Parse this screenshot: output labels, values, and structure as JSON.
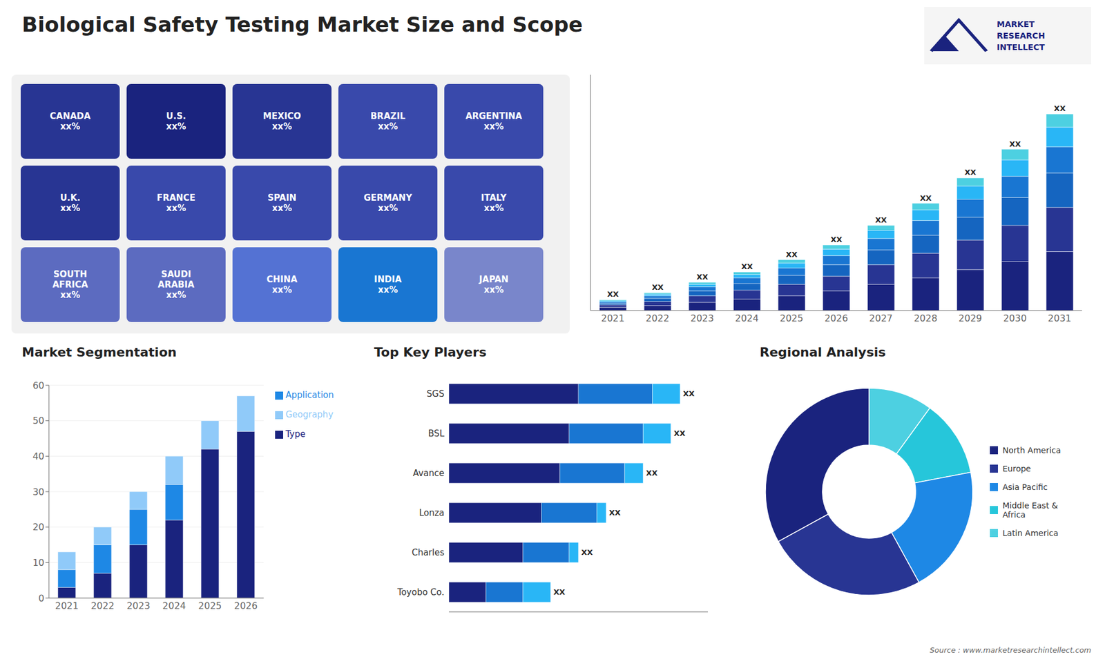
{
  "chart_data": [
    {
      "type": "header",
      "title": "Biological Safety Testing Market Size and Scope",
      "annotations": [
        "MARKET",
        "RESEARCH",
        "INTELLECT"
      ]
    },
    {
      "type": "map",
      "annotations": [
        "CANADA\nxx%",
        "U.S.\nxx%",
        "MEXICO\nxx%",
        "BRAZIL\nxx%",
        "ARGENTINA\nxx%",
        "U.K.\nxx%",
        "FRANCE\nxx%",
        "SPAIN\nxx%",
        "GERMANY\nxx%",
        "ITALY\nxx%",
        "SOUTH\nAFRICA\nxx%",
        "SAUDI\nARABIA\nxx%",
        "CHINA\nxx%",
        "INDIA\nxx%",
        "JAPAN\nxx%"
      ],
      "colors": [
        "#283593",
        "#1a237e",
        "#283593",
        "#3949ab",
        "#3949ab",
        "#283593",
        "#3949ab",
        "#3949ab",
        "#3949ab",
        "#3949ab",
        "#5c6bc0",
        "#5c6bc0",
        "#5472d3",
        "#1976d2",
        "#7986cb"
      ]
    },
    {
      "type": "bar",
      "stacked": true,
      "categories": [
        "2021",
        "2022",
        "2023",
        "2024",
        "2025",
        "2026",
        "2027",
        "2028",
        "2029",
        "2030",
        "2031"
      ],
      "series": [
        {
          "color": "#1a237e",
          "values": [
            2,
            3,
            5,
            7,
            9,
            12,
            16,
            20,
            25,
            30,
            36
          ]
        },
        {
          "color": "#283593",
          "values": [
            1.5,
            2.5,
            4,
            5.5,
            7,
            9,
            12,
            15,
            18,
            22,
            27
          ]
        },
        {
          "color": "#1565c0",
          "values": [
            1,
            2,
            3,
            4,
            5.5,
            7,
            9,
            11,
            14,
            17,
            21
          ]
        },
        {
          "color": "#1976d2",
          "values": [
            0.8,
            1.5,
            2.5,
            3.5,
            4.5,
            5.5,
            7,
            9,
            11,
            13,
            16
          ]
        },
        {
          "color": "#29b6f6",
          "values": [
            0.7,
            1.0,
            1.5,
            2.0,
            3.0,
            4.0,
            5.0,
            6.5,
            8.0,
            10.0,
            12.0
          ]
        },
        {
          "color": "#4dd0e1",
          "values": [
            0.5,
            0.8,
            1.2,
            1.5,
            2.0,
            2.5,
            3.0,
            4.0,
            5.0,
            6.5,
            8.0
          ]
        }
      ],
      "ylim": [
        0,
        144
      ],
      "tick_labels": "x",
      "grid": false,
      "annotations": [
        "XX",
        "XX",
        "XX",
        "XX",
        "XX",
        "XX",
        "XX",
        "XX",
        "XX",
        "XX",
        "XX"
      ]
    },
    {
      "type": "bar",
      "title": "Market Segmentation",
      "stacked": true,
      "categories": [
        "2021",
        "2022",
        "2023",
        "2024",
        "2025",
        "2026"
      ],
      "series": [
        {
          "name": "Type",
          "color": "#1a237e",
          "values": [
            3,
            7,
            15,
            22,
            42,
            47
          ]
        },
        {
          "name": "Application",
          "color": "#1e88e5",
          "values": [
            5,
            8,
            10,
            10,
            0,
            0
          ]
        },
        {
          "name": "Geography",
          "color": "#90caf9",
          "values": [
            5,
            5,
            5,
            8,
            8,
            10
          ]
        }
      ],
      "ylim": [
        0,
        60
      ],
      "yticks": [
        0,
        10,
        20,
        30,
        40,
        50,
        60
      ],
      "grid": true,
      "legend": "right"
    },
    {
      "type": "bar",
      "title": "Top Key Players",
      "orientation": "horizontal",
      "stacked": true,
      "categories": [
        "SGS",
        "BSL",
        "Avance",
        "Lonza",
        "Charles",
        "Toyobo Co."
      ],
      "series": [
        {
          "color": "#1a237e",
          "values": [
            7,
            6.5,
            6,
            5,
            4,
            2
          ]
        },
        {
          "color": "#1976d2",
          "values": [
            4,
            4,
            3.5,
            3,
            2.5,
            2
          ]
        },
        {
          "color": "#29b6f6",
          "values": [
            1.5,
            1.5,
            1.0,
            0.5,
            0.5,
            1.5
          ]
        }
      ],
      "xlim": [
        0,
        14
      ],
      "tick_labels": "y",
      "grid": false,
      "annotations": [
        "XX",
        "XX",
        "XX",
        "XX",
        "XX",
        "XX"
      ]
    },
    {
      "type": "pie",
      "title": "Regional Analysis",
      "categories": [
        "Latin America",
        "Middle East &\nAfrica",
        "Asia Pacific",
        "Europe",
        "North America"
      ],
      "values": [
        10,
        12,
        20,
        25,
        33
      ],
      "colors": [
        "#4dd0e1",
        "#26c6da",
        "#1e88e5",
        "#283593",
        "#1a237e"
      ],
      "legend": "right"
    },
    {
      "type": "note",
      "annotations": [
        "Source : www.marketresearchintellect.com"
      ]
    }
  ]
}
